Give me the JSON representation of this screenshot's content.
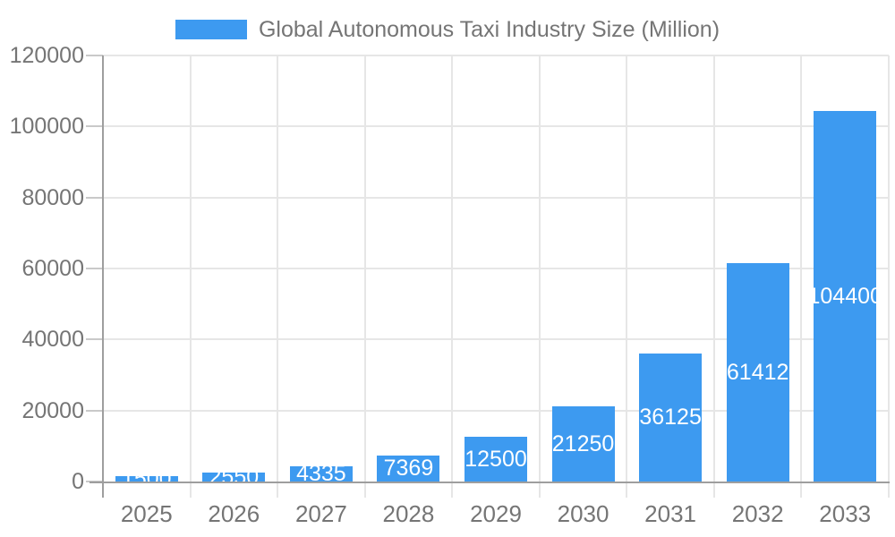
{
  "chart_data": {
    "type": "bar",
    "title": "Global Autonomous Taxi Industry Size (Million)",
    "legend": {
      "label": "Global Autonomous Taxi Industry Size (Million)",
      "position": "top"
    },
    "categories": [
      "2025",
      "2026",
      "2027",
      "2028",
      "2029",
      "2030",
      "2031",
      "2032",
      "2033"
    ],
    "values": [
      1500,
      2550,
      4335,
      7369,
      12500,
      21250,
      36125,
      61412,
      104400
    ],
    "value_labels": [
      "1500",
      "2550",
      "4335",
      "7369",
      "12500",
      "21250",
      "36125",
      "61412",
      "104400"
    ],
    "xlabel": "",
    "ylabel": "",
    "ylim": [
      0,
      120000
    ],
    "yticks": [
      0,
      20000,
      40000,
      60000,
      80000,
      100000,
      120000
    ],
    "grid": true,
    "colors": {
      "bar": "#3D9AF0",
      "bar_label": "#FFFFFF",
      "axis_text": "#757575",
      "gridline": "#E6E6E6",
      "axis_line": "#9E9E9E",
      "tick": "#C9C9C9",
      "background": "#FFFFFF"
    }
  }
}
